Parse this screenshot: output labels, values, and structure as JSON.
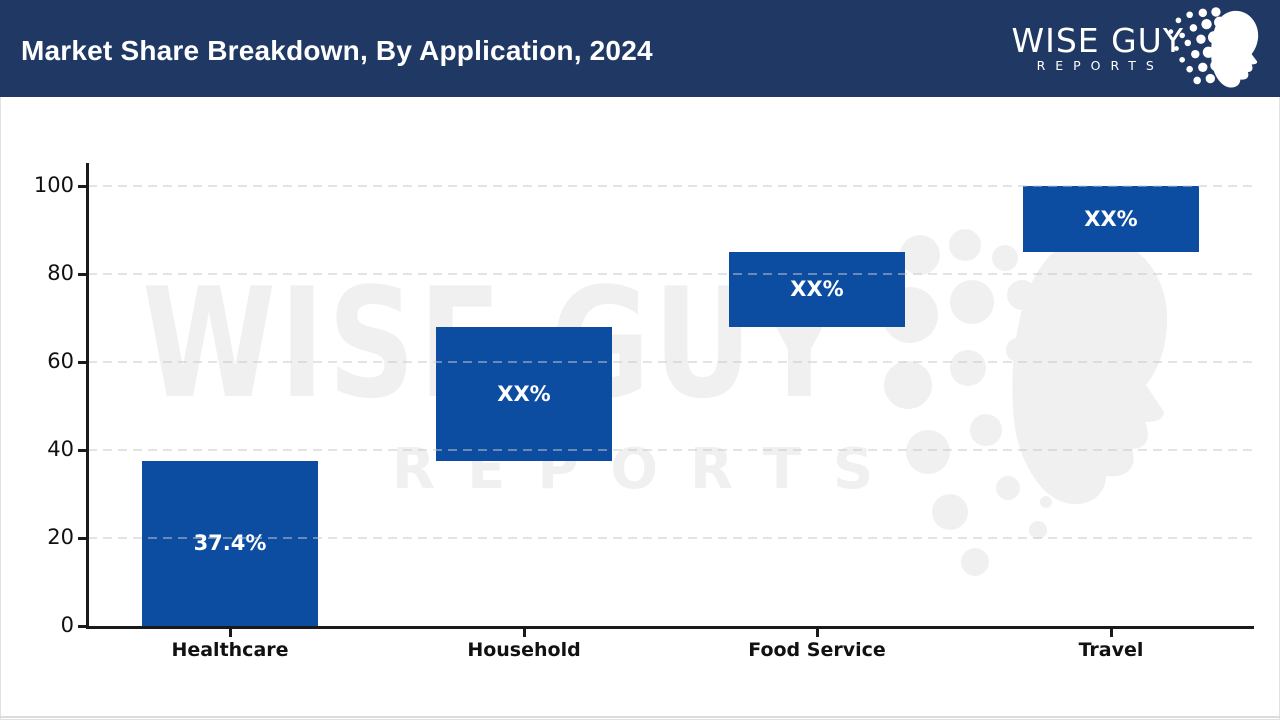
{
  "header": {
    "title": "Market Share Breakdown, By Application, 2024",
    "logo": {
      "wordmark": "WISE GUY",
      "subtext": "REPORTS"
    }
  },
  "watermark": {
    "line1": "WISE GUY",
    "line2": "REPORTS"
  },
  "colors": {
    "header_bg": "#1f3864",
    "bar": "#0c4da2",
    "bar_label": "#ffffff",
    "grid": "#c9c9c9",
    "axis": "#1a1a1a",
    "tick_text": "#111111",
    "watermark": "#f0f0f0"
  },
  "chart_data": {
    "type": "bar",
    "subtype": "waterfall",
    "title": "Market Share Breakdown, By Application, 2024",
    "categories": [
      "Healthcare",
      "Household",
      "Food Service",
      "Travel"
    ],
    "segments": [
      {
        "category": "Healthcare",
        "start": 0,
        "end": 37.4,
        "value_label": "37.4%"
      },
      {
        "category": "Household",
        "start": 37.4,
        "end": 68,
        "value_label": "XX%"
      },
      {
        "category": "Food Service",
        "start": 68,
        "end": 85,
        "value_label": "XX%"
      },
      {
        "category": "Travel",
        "start": 85,
        "end": 100,
        "value_label": "XX%"
      }
    ],
    "yticks": [
      0,
      20,
      40,
      60,
      80,
      100
    ],
    "ylim": [
      0,
      105
    ],
    "xlabel": "",
    "ylabel": "",
    "grid": "horizontal-dashed",
    "legend": "none"
  }
}
